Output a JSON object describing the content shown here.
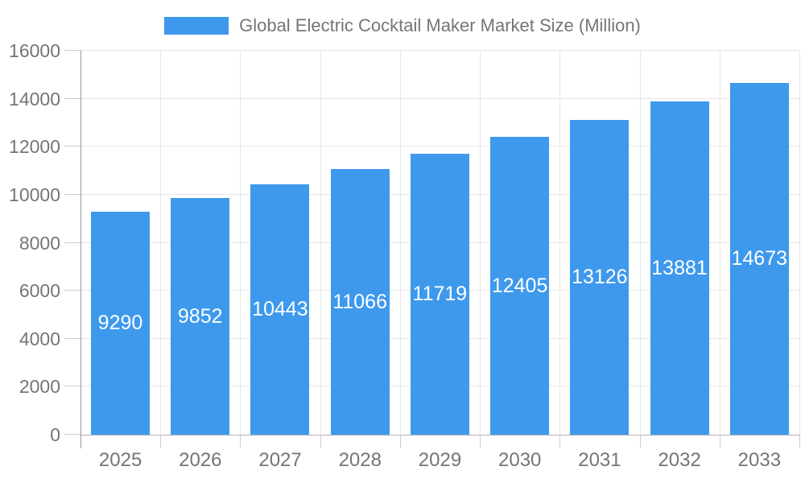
{
  "chart_data": {
    "type": "bar",
    "title": "Global Electric Cocktail Maker Market Size (Million)",
    "series_name": "Global Electric Cocktail Maker Market Size (Million)",
    "categories": [
      "2025",
      "2026",
      "2027",
      "2028",
      "2029",
      "2030",
      "2031",
      "2032",
      "2033"
    ],
    "values": [
      9290,
      9852,
      10443,
      11066,
      11719,
      12405,
      13126,
      13881,
      14673
    ],
    "xlabel": "",
    "ylabel": "",
    "ylim": [
      0,
      16000
    ],
    "y_ticks": [
      0,
      2000,
      4000,
      6000,
      8000,
      10000,
      12000,
      14000,
      16000
    ],
    "grid": true,
    "legend_position": "top",
    "value_label_position": "inside-center"
  },
  "colors": {
    "bar": "#3E99ED",
    "bar_value_label": "#FFFFFF",
    "axis_text": "#757575",
    "legend_text": "#757575",
    "grid_line": "#E6E6E6",
    "y_axis_line": "#999999",
    "x_axis_line": "#B3B3B3",
    "tick": "#CCCCCC",
    "background": "#FFFFFF"
  }
}
